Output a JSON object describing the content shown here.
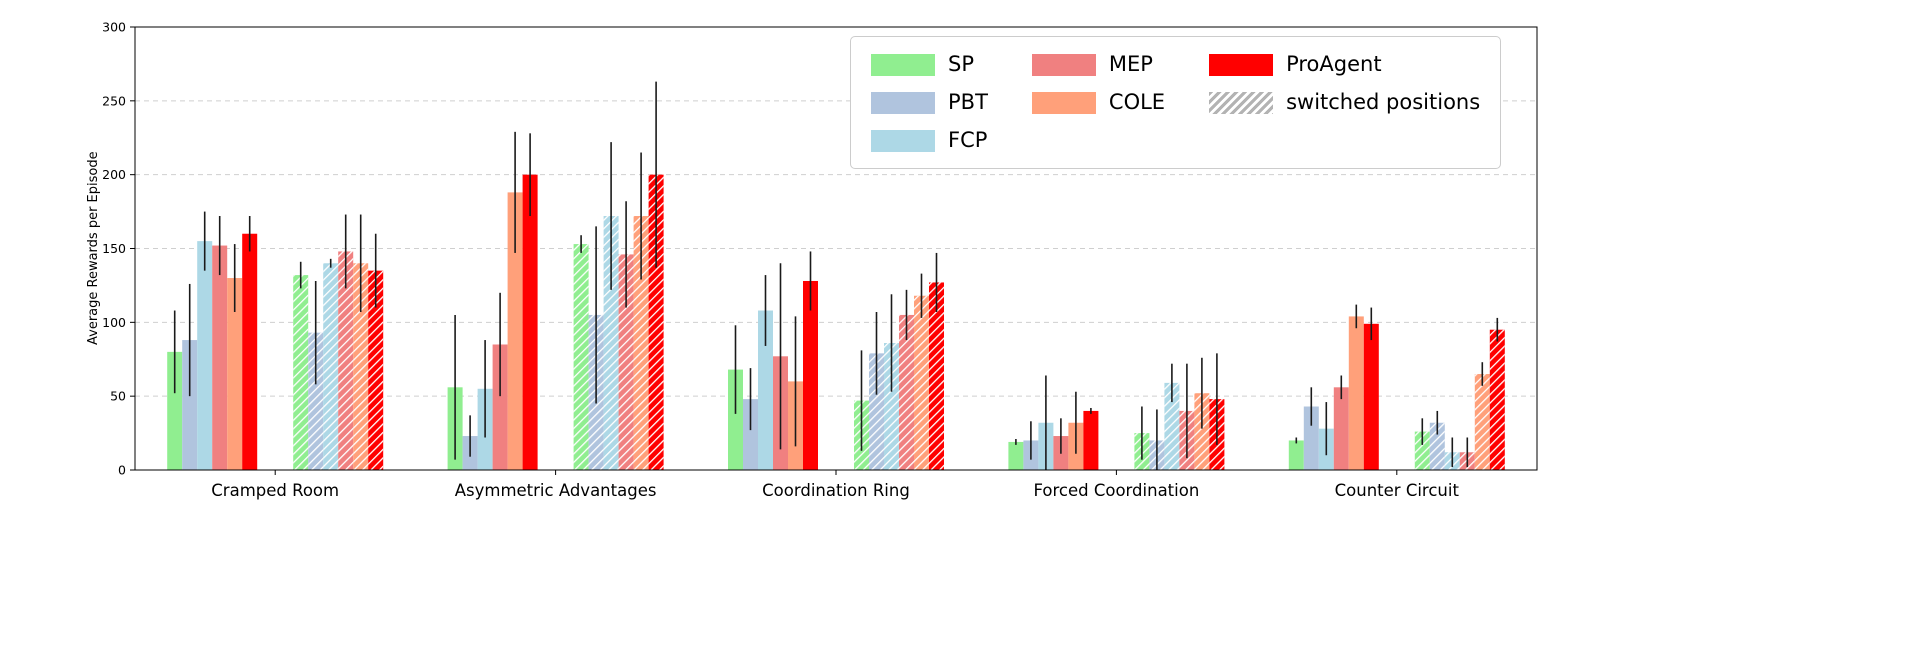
{
  "figure": {
    "background": "#ffffff"
  },
  "chart_data": {
    "type": "bar",
    "title": "",
    "xlabel": "",
    "ylabel": "Average Rewards per Episode",
    "ylim": [
      0,
      300
    ],
    "yticks": [
      0,
      50,
      100,
      150,
      200,
      250,
      300
    ],
    "grid": "horizontal-dashed",
    "legend_position": "upper-right-inside",
    "categories": [
      "Cramped Room",
      "Asymmetric Advantages",
      "Coordination Ring",
      "Forced Coordination",
      "Counter Circuit"
    ],
    "bar_groups": [
      "normal positions",
      "switched positions (hatched)"
    ],
    "series": [
      {
        "name": "SP",
        "color": "#90EE90",
        "values": [
          80,
          56,
          68,
          19,
          20
        ],
        "errors": [
          28,
          49,
          30,
          2,
          2
        ],
        "switched_values": [
          132,
          153,
          47,
          25,
          26
        ],
        "switched_errors": [
          9,
          6,
          34,
          18,
          9
        ]
      },
      {
        "name": "PBT",
        "color": "#B0C4DE",
        "values": [
          88,
          23,
          48,
          20,
          43
        ],
        "errors": [
          38,
          14,
          21,
          13,
          13
        ],
        "switched_values": [
          93,
          105,
          79,
          20,
          32
        ],
        "switched_errors": [
          35,
          60,
          28,
          21,
          8
        ]
      },
      {
        "name": "FCP",
        "color": "#ADD8E6",
        "values": [
          155,
          55,
          108,
          32,
          28
        ],
        "errors": [
          20,
          33,
          24,
          32,
          18
        ],
        "switched_values": [
          140,
          172,
          86,
          59,
          12
        ],
        "switched_errors": [
          3,
          50,
          33,
          13,
          10
        ]
      },
      {
        "name": "MEP",
        "color": "#F08080",
        "values": [
          152,
          85,
          77,
          23,
          56
        ],
        "errors": [
          20,
          35,
          63,
          12,
          8
        ],
        "switched_values": [
          148,
          146,
          105,
          40,
          12
        ],
        "switched_errors": [
          25,
          36,
          17,
          32,
          10
        ]
      },
      {
        "name": "COLE",
        "color": "#FFA07A",
        "values": [
          130,
          188,
          60,
          32,
          104
        ],
        "errors": [
          23,
          41,
          44,
          21,
          8
        ],
        "switched_values": [
          140,
          172,
          118,
          52,
          65
        ],
        "switched_errors": [
          33,
          43,
          15,
          24,
          8
        ]
      },
      {
        "name": "ProAgent",
        "color": "#FF0000",
        "values": [
          160,
          200,
          128,
          40,
          99
        ],
        "errors": [
          12,
          28,
          20,
          2,
          11
        ],
        "switched_values": [
          135,
          200,
          127,
          48,
          95
        ],
        "switched_errors": [
          25,
          63,
          20,
          31,
          8
        ]
      }
    ],
    "switched_legend": {
      "label": "switched positions",
      "color": "#b3b3b3"
    }
  }
}
